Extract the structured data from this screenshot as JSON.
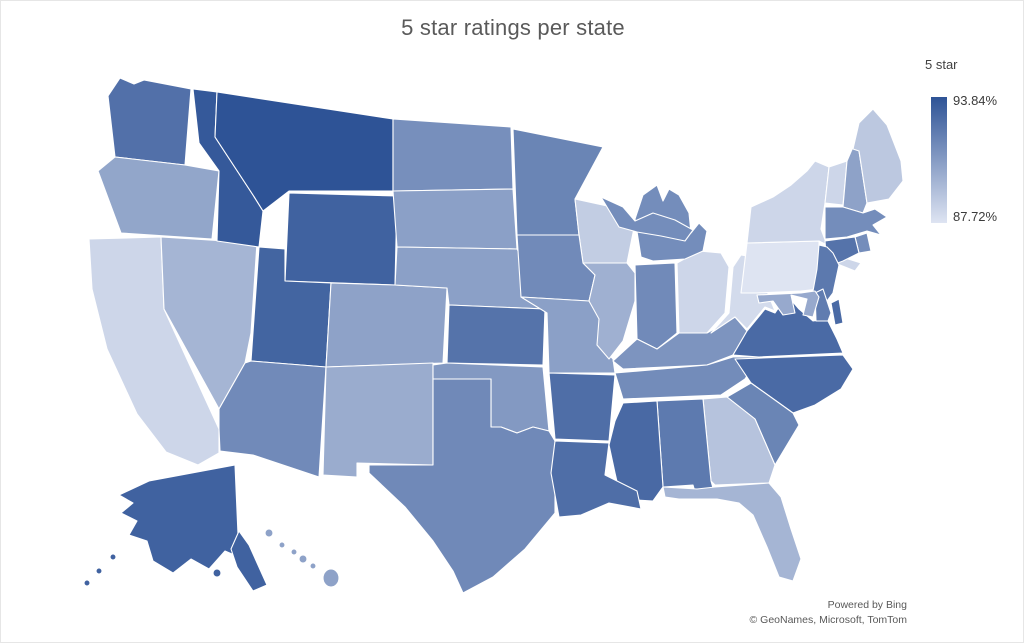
{
  "title": "5 star ratings per state",
  "legend": {
    "title": "5 star",
    "max_label": "93.84%",
    "min_label": "87.72%",
    "max_value": 93.84,
    "min_value": 87.72,
    "color_dark": "#2e5396",
    "color_light": "#dee4f2"
  },
  "attribution": {
    "line1": "Powered by Bing",
    "line2": "© GeoNames, Microsoft, TomTom"
  },
  "chart_data": {
    "type": "choropleth_map",
    "region": "United States",
    "measure": "5 star",
    "unit": "%",
    "range": [
      87.72,
      93.84
    ],
    "legend_position": "top-right",
    "states": [
      {
        "id": "AL",
        "name": "Alabama",
        "value": 92.2
      },
      {
        "id": "AK",
        "name": "Alaska",
        "value": 93.2
      },
      {
        "id": "AZ",
        "name": "Arizona",
        "value": 91.5
      },
      {
        "id": "AR",
        "name": "Arkansas",
        "value": 92.7
      },
      {
        "id": "CA",
        "name": "California",
        "value": 88.3
      },
      {
        "id": "CO",
        "name": "Colorado",
        "value": 90.5
      },
      {
        "id": "CT",
        "name": "Connecticut",
        "value": 92.5
      },
      {
        "id": "DE",
        "name": "Delaware",
        "value": 92.1
      },
      {
        "id": "FL",
        "name": "Florida",
        "value": 89.7
      },
      {
        "id": "GA",
        "name": "Georgia",
        "value": 89.1
      },
      {
        "id": "HI",
        "name": "Hawaii",
        "value": 90.5
      },
      {
        "id": "ID",
        "name": "Idaho",
        "value": 93.6
      },
      {
        "id": "IL",
        "name": "Illinois",
        "value": 89.9
      },
      {
        "id": "IN",
        "name": "Indiana",
        "value": 91.5
      },
      {
        "id": "IA",
        "name": "Iowa",
        "value": 91.5
      },
      {
        "id": "KS",
        "name": "Kansas",
        "value": 92.5
      },
      {
        "id": "KY",
        "name": "Kentucky",
        "value": 91.1
      },
      {
        "id": "LA",
        "name": "Louisiana",
        "value": 92.7
      },
      {
        "id": "ME",
        "name": "Maine",
        "value": 88.9
      },
      {
        "id": "MD",
        "name": "Maryland",
        "value": 90.2
      },
      {
        "id": "MA",
        "name": "Massachusetts",
        "value": 91.4
      },
      {
        "id": "MI",
        "name": "Michigan",
        "value": 91.4
      },
      {
        "id": "MN",
        "name": "Minnesota",
        "value": 91.75
      },
      {
        "id": "MS",
        "name": "Mississippi",
        "value": 92.9
      },
      {
        "id": "MO",
        "name": "Missouri",
        "value": 90.6
      },
      {
        "id": "MT",
        "name": "Montana",
        "value": 93.84
      },
      {
        "id": "NE",
        "name": "Nebraska",
        "value": 90.6
      },
      {
        "id": "NV",
        "name": "Nevada",
        "value": 89.7
      },
      {
        "id": "NH",
        "name": "New Hampshire",
        "value": 90.5
      },
      {
        "id": "NJ",
        "name": "New Jersey",
        "value": 92.25
      },
      {
        "id": "NM",
        "name": "New Mexico",
        "value": 90.1
      },
      {
        "id": "NY",
        "name": "New York",
        "value": 88.3
      },
      {
        "id": "NC",
        "name": "North Carolina",
        "value": 92.85
      },
      {
        "id": "ND",
        "name": "North Dakota",
        "value": 91.3
      },
      {
        "id": "OH",
        "name": "Ohio",
        "value": 88.3
      },
      {
        "id": "OK",
        "name": "Oklahoma",
        "value": 90.9
      },
      {
        "id": "OR",
        "name": "Oregon",
        "value": 90.35
      },
      {
        "id": "PA",
        "name": "Pennsylvania",
        "value": 87.72
      },
      {
        "id": "RI",
        "name": "Rhode Island",
        "value": 91.4
      },
      {
        "id": "SC",
        "name": "South Carolina",
        "value": 91.75
      },
      {
        "id": "SD",
        "name": "South Dakota",
        "value": 90.6
      },
      {
        "id": "TN",
        "name": "Tennessee",
        "value": 91.45
      },
      {
        "id": "TX",
        "name": "Texas",
        "value": 91.55
      },
      {
        "id": "UT",
        "name": "Utah",
        "value": 93.1
      },
      {
        "id": "VT",
        "name": "Vermont",
        "value": 88.3
      },
      {
        "id": "VA",
        "name": "Virginia",
        "value": 92.85
      },
      {
        "id": "WA",
        "name": "Washington",
        "value": 92.6
      },
      {
        "id": "WV",
        "name": "West Virginia",
        "value": 88.1
      },
      {
        "id": "WI",
        "name": "Wisconsin",
        "value": 88.7
      },
      {
        "id": "WY",
        "name": "Wyoming",
        "value": 93.2
      }
    ]
  }
}
